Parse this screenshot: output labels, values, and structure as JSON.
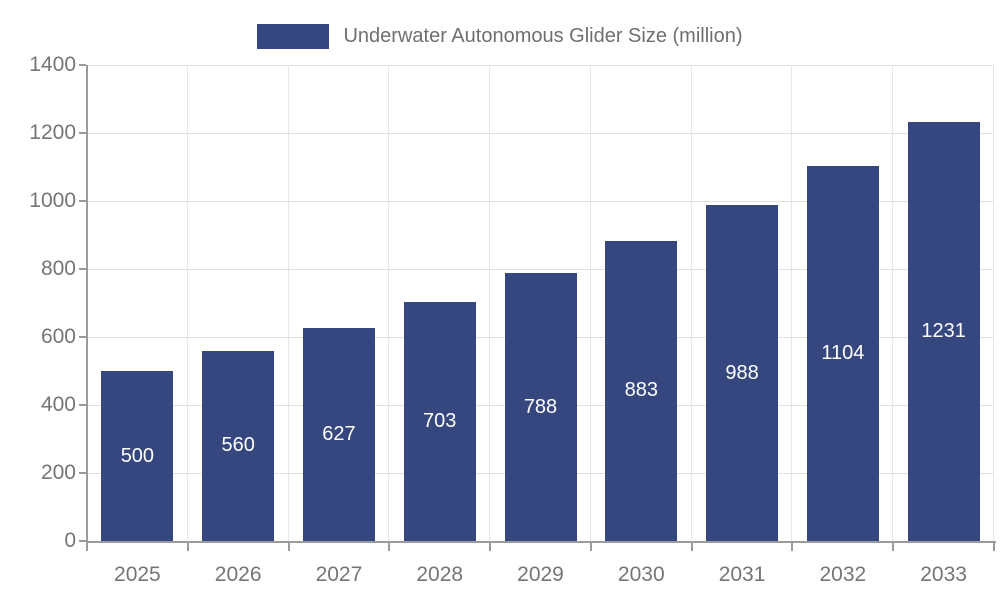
{
  "legend": {
    "label": "Underwater Autonomous Glider Size (million)"
  },
  "chart_data": {
    "type": "bar",
    "title": "Underwater Autonomous Glider Size (million)",
    "categories": [
      "2025",
      "2026",
      "2027",
      "2028",
      "2029",
      "2030",
      "2031",
      "2032",
      "2033"
    ],
    "values": [
      500,
      560,
      627,
      703,
      788,
      883,
      988,
      1104,
      1231
    ],
    "xlabel": "",
    "ylabel": "",
    "ylim": [
      0,
      1400
    ],
    "ytick_step": 200,
    "yticks": [
      0,
      200,
      400,
      600,
      800,
      1000,
      1200,
      1400
    ],
    "grid": true,
    "legend_position": "top-center",
    "value_labels": "inside-center",
    "colors": {
      "bar": "#35477e",
      "value_label": "#ffffff",
      "axis_label": "#757575",
      "legend_text": "#6f6f6f",
      "grid_line": "#e0e0e0",
      "axis_line": "#9b9b9b",
      "background": "#ffffff"
    }
  }
}
